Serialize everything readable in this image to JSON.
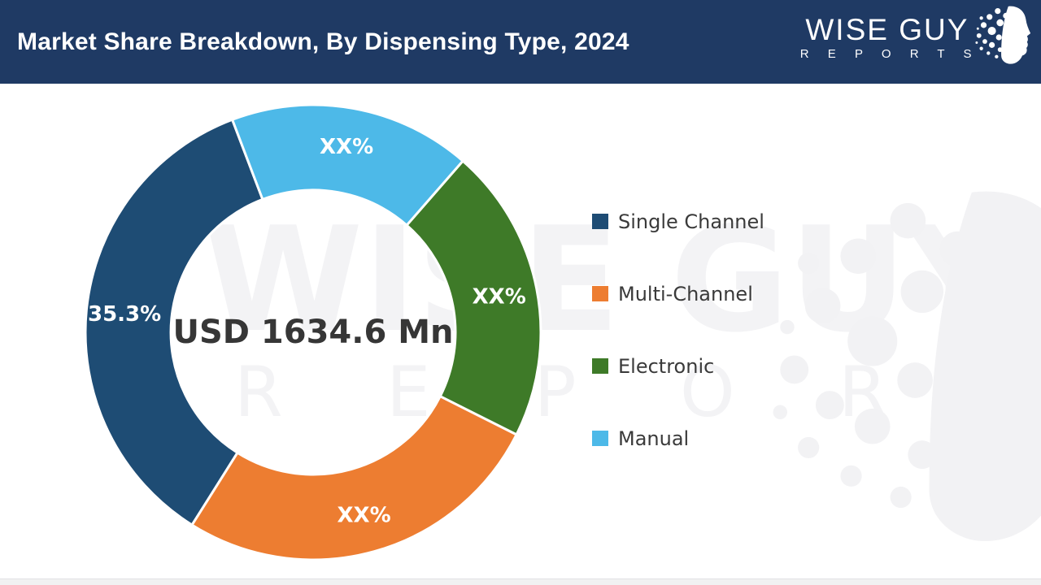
{
  "header": {
    "title": "Market Share Breakdown, By Dispensing Type, 2024",
    "bg_color": "#1f3a64",
    "logo": {
      "line1": "WISE GUY",
      "line2": "R E P O R T S"
    }
  },
  "chart_data": {
    "type": "pie",
    "subtype": "donut",
    "title": "Market Share Breakdown, By Dispensing Type, 2024",
    "center_label": "USD 1634.6 Mn",
    "legend_position": "right",
    "start_angle_deg": 110.8,
    "direction": "counterclockwise",
    "inner_radius_ratio": 0.625,
    "series": [
      {
        "name": "Single Channel",
        "label": "35.3%",
        "est_value_pct": 35.3,
        "color": "#1e4c74"
      },
      {
        "name": "Multi-Channel",
        "label": "XX%",
        "est_value_pct": 26.5,
        "color": "#ed7d31"
      },
      {
        "name": "Electronic",
        "label": "XX%",
        "est_value_pct": 21.0,
        "color": "#3e7a28"
      },
      {
        "name": "Manual",
        "label": "XX%",
        "est_value_pct": 17.2,
        "color": "#4db9e8"
      }
    ]
  },
  "watermark": {
    "line1": "WISE GUY",
    "line2": "R E P O R T S"
  }
}
